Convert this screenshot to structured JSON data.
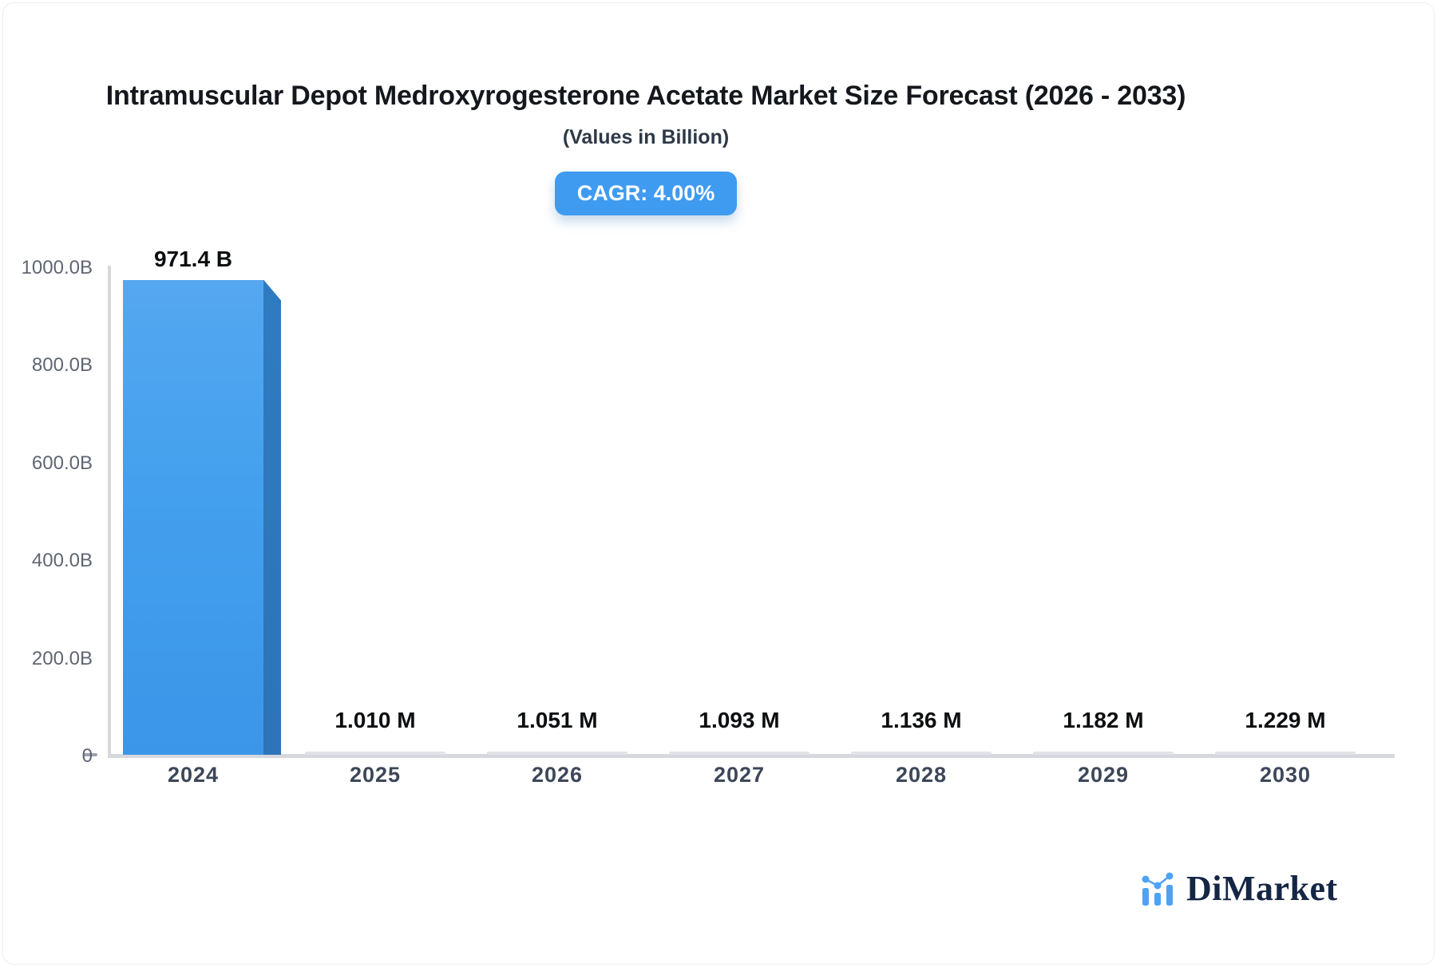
{
  "header": {
    "title": "Intramuscular Depot Medroxyrogesterone Acetate Market Size Forecast (2026 - 2033)",
    "subtitle": "(Values in Billion)",
    "cagr_badge": "CAGR: 4.00%"
  },
  "chart_data": {
    "type": "bar",
    "title": "Intramuscular Depot Medroxyrogesterone Acetate Market Size Forecast (2026 - 2033)",
    "subtitle": "(Values in Billion)",
    "cagr_percent": "4.00%",
    "categories": [
      "2024",
      "2025",
      "2026",
      "2027",
      "2028",
      "2029",
      "2030"
    ],
    "values_billions": [
      971.4,
      0.00101,
      0.001051,
      0.001093,
      0.001136,
      0.001182,
      0.001229
    ],
    "value_labels": [
      "971.4 B",
      "1.010 M",
      "1.051 M",
      "1.093 M",
      "1.136 M",
      "1.182 M",
      "1.229 M"
    ],
    "y_tick_labels": [
      "1000.0B",
      "800.0B",
      "600.0B",
      "400.0B",
      "200.0B",
      "0"
    ],
    "y_tick_values": [
      1000,
      800,
      600,
      400,
      200,
      0
    ],
    "ylim": [
      0,
      1000
    ],
    "xlabel": "",
    "ylabel": "",
    "grid": false,
    "legend": false,
    "bar_color": "#3f9aec",
    "bar_side_color": "#2d74b8",
    "accent_color": "#3f9bf0"
  },
  "branding": {
    "logo_text": "DiMarket",
    "logo_icon": "bar-chart-icon",
    "logo_color": "#4da2f5",
    "logo_text_color": "#152644"
  }
}
